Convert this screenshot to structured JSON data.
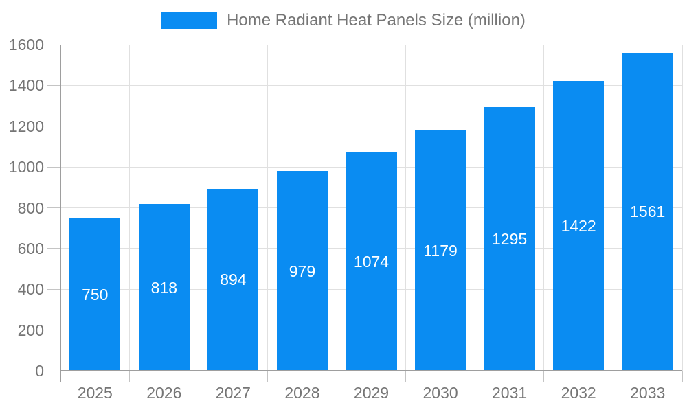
{
  "chart_data": {
    "type": "bar",
    "title": "Home Radiant Heat Panels Size (million)",
    "categories": [
      "2025",
      "2026",
      "2027",
      "2028",
      "2029",
      "2030",
      "2031",
      "2032",
      "2033"
    ],
    "values": [
      750,
      818,
      894,
      979,
      1074,
      1179,
      1295,
      1422,
      1561
    ],
    "xlabel": "",
    "ylabel": "",
    "ylim": [
      0,
      1600
    ],
    "ytick_step": 200,
    "ytick_labels": [
      "0",
      "200",
      "400",
      "600",
      "800",
      "1000",
      "1200",
      "1400",
      "1600"
    ],
    "grid": true,
    "legend_position": "top-center",
    "value_labels_inside_bars": true,
    "colors": {
      "bar": "#0a8cf2",
      "bar_value_text": "#ffffff",
      "axis_text": "#757575",
      "legend_text": "#757575",
      "axis_line": "#9e9e9e",
      "tick_line": "#c4c4c4",
      "gridline": "#e0e0e0",
      "background": "#ffffff"
    }
  }
}
